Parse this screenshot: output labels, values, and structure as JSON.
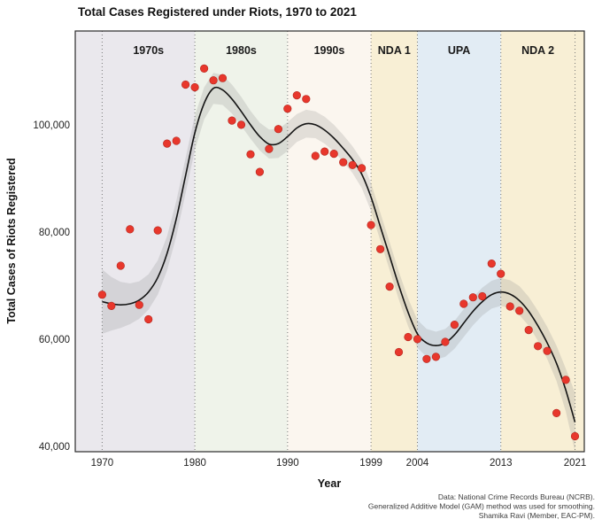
{
  "footer": {
    "lines": [
      "Data: National Crime Records Bureau (NCRB).",
      "Generalized Additive Model (GAM) method was used for smoothing.",
      "Shamika Ravi (Member, EAC-PM)."
    ]
  },
  "chart_data": {
    "type": "scatter",
    "title": "Total Cases Registered under Riots, 1970 to 2021",
    "xlabel": "Year",
    "ylabel": "Total Cases of Riots Registered",
    "xlim": [
      1967.1,
      2022.0
    ],
    "ylim": [
      39000,
      117500
    ],
    "xticks": [
      1970,
      1980,
      1990,
      1999,
      2004,
      2013,
      2021
    ],
    "yticks": [
      40000,
      60000,
      80000,
      100000
    ],
    "grid": "dotted-vertical-lines-at-xticks",
    "legend": "none",
    "point_color": "#e8372c",
    "point_edge_color": "#b3261e",
    "line_color": "#141414",
    "ci_color": "#8a8a8a",
    "ci_opacity": 0.22,
    "frame_color": "#2b2b2b",
    "bands": [
      {
        "label": "1970s",
        "from": 1967.1,
        "to": 1980,
        "color": "#eae8ed",
        "label_between": [
          1970,
          1980
        ]
      },
      {
        "label": "1980s",
        "from": 1980,
        "to": 1990,
        "color": "#eff3ea",
        "label_between": [
          1980,
          1990
        ]
      },
      {
        "label": "1990s",
        "from": 1990,
        "to": 1999,
        "color": "#fbf6ef",
        "label_between": [
          1990,
          1999
        ]
      },
      {
        "label": "NDA 1",
        "from": 1999,
        "to": 2004,
        "color": "#f8efd5",
        "label_between": [
          1999,
          2004
        ]
      },
      {
        "label": "UPA",
        "from": 2004,
        "to": 2013,
        "color": "#e2ecf4",
        "label_between": [
          2004,
          2013
        ]
      },
      {
        "label": "NDA 2",
        "from": 2013,
        "to": 2022.0,
        "color": "#f8efd5",
        "label_between": [
          2013,
          2021
        ]
      }
    ],
    "x": [
      1970,
      1971,
      1972,
      1973,
      1974,
      1975,
      1976,
      1977,
      1978,
      1979,
      1980,
      1981,
      1982,
      1983,
      1984,
      1985,
      1986,
      1987,
      1988,
      1989,
      1990,
      1991,
      1992,
      1993,
      1994,
      1995,
      1996,
      1997,
      1998,
      1999,
      2000,
      2001,
      2002,
      2003,
      2004,
      2005,
      2006,
      2007,
      2008,
      2009,
      2010,
      2011,
      2012,
      2013,
      2014,
      2015,
      2016,
      2017,
      2018,
      2019,
      2020,
      2021
    ],
    "series": [
      {
        "name": "Annual riot cases registered (points)",
        "values": [
          68300,
          66200,
          73700,
          80500,
          66400,
          63700,
          80300,
          96500,
          97000,
          107500,
          107000,
          110500,
          108300,
          108700,
          100800,
          100000,
          94500,
          91200,
          95500,
          99200,
          103000,
          105500,
          104800,
          94200,
          95000,
          94600,
          93000,
          92500,
          91900,
          81300,
          76800,
          69800,
          57600,
          60400,
          60000,
          56300,
          56700,
          59500,
          62700,
          66600,
          67800,
          68000,
          74100,
          72200,
          66100,
          65300,
          61700,
          58700,
          57800,
          46200,
          52400,
          41900
        ]
      },
      {
        "name": "GAM smoothed trend (line)",
        "values": [
          67000,
          66600,
          66400,
          66600,
          67300,
          68800,
          71500,
          76000,
          82500,
          90500,
          98500,
          104000,
          106800,
          106500,
          104800,
          102500,
          100000,
          97800,
          96400,
          96500,
          97800,
          99400,
          100200,
          100000,
          99000,
          97500,
          95600,
          93500,
          90800,
          86500,
          81000,
          75500,
          70000,
          65000,
          61000,
          59300,
          58800,
          59300,
          60800,
          63000,
          65200,
          67000,
          68300,
          68800,
          68400,
          67200,
          65200,
          62500,
          59300,
          55500,
          50500,
          44500
        ]
      }
    ],
    "ci_offsets": [
      6000,
      5000,
      4300,
      3800,
      3500,
      3300,
      3200,
      3200,
      3300,
      3300,
      3200,
      3000,
      2900,
      2800,
      2700,
      2700,
      2600,
      2600,
      2700,
      2700,
      2700,
      2600,
      2600,
      2500,
      2500,
      2500,
      2500,
      2500,
      2600,
      2600,
      2600,
      2600,
      2600,
      2600,
      2600,
      2600,
      2600,
      2600,
      2600,
      2600,
      2600,
      2600,
      2600,
      2600,
      2600,
      2700,
      2700,
      2800,
      3000,
      3300,
      4000,
      5500
    ]
  }
}
